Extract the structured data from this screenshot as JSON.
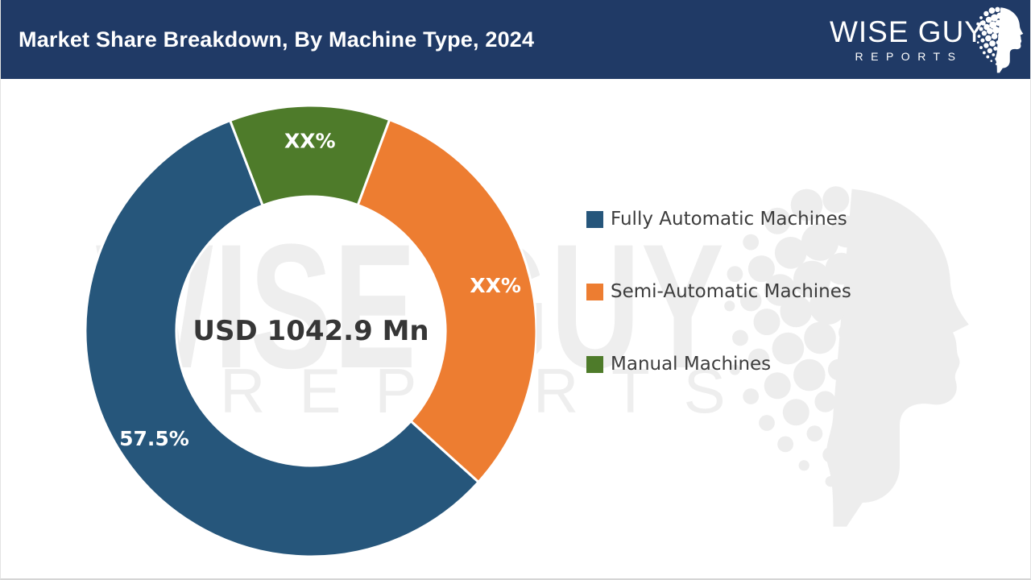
{
  "header": {
    "title": "Market Share Breakdown, By Machine Type, 2024",
    "bg_color": "#203A66",
    "logo": {
      "wordmark": "WISE GUY",
      "subtext": "REPORTS"
    }
  },
  "watermark": {
    "wordmark": "WISE GUY",
    "subtext": "REPORTS"
  },
  "chart_data": {
    "type": "pie",
    "subtype": "donut",
    "title": "Market Share Breakdown, By Machine Type, 2024",
    "center_label": "USD 1042.9 Mn",
    "legend_position": "right",
    "start_angle_deg": 111,
    "categories": [
      "Fully Automatic Machines",
      "Semi-Automatic Machines",
      "Manual Machines"
    ],
    "values": [
      57.5,
      31,
      11.5
    ],
    "displayed_labels": [
      "57.5%",
      "XX%",
      "XX%"
    ],
    "colors": [
      "#26567B",
      "#ED7D31",
      "#4E7B2A"
    ]
  }
}
